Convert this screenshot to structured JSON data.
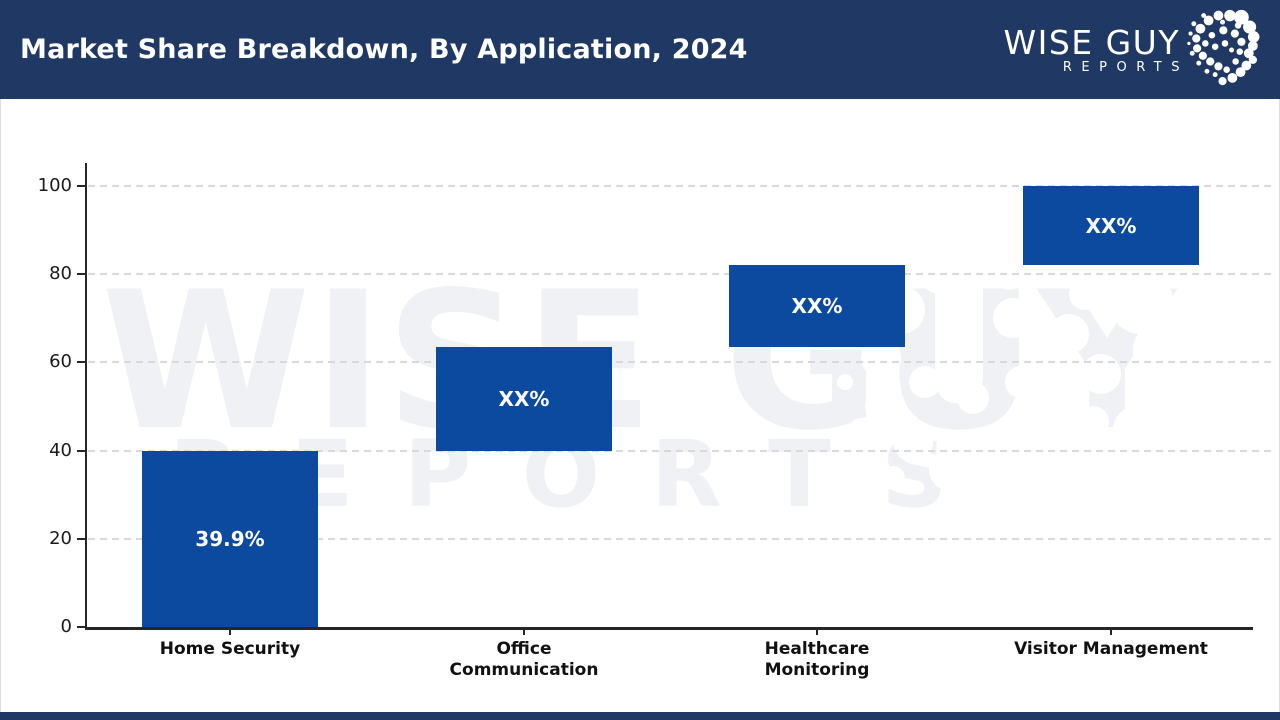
{
  "header": {
    "title": "Market Share Breakdown, By Application, 2024",
    "logo": {
      "line1": "WISE GUY",
      "line2": "REPORTS"
    }
  },
  "watermark": {
    "line1": "WISE GUY",
    "line2": "REPORTS"
  },
  "chart_data": {
    "type": "bar",
    "subtype": "waterfall",
    "title": "Market Share Breakdown, By Application, 2024",
    "categories": [
      "Home Security",
      "Office Communication",
      "Healthcare Monitoring",
      "Visitor Management"
    ],
    "category_label_lines": [
      [
        "Home Security"
      ],
      [
        "Office",
        "Communication"
      ],
      [
        "Healthcare",
        "Monitoring"
      ],
      [
        "Visitor Management"
      ]
    ],
    "segments": [
      {
        "category": "Home Security",
        "start": 0,
        "end": 39.9,
        "label": "39.9%"
      },
      {
        "category": "Office Communication",
        "start": 40,
        "end": 63.5,
        "label": "XX%"
      },
      {
        "category": "Healthcare Monitoring",
        "start": 63.5,
        "end": 82,
        "label": "XX%"
      },
      {
        "category": "Visitor Management",
        "start": 82,
        "end": 100,
        "label": "XX%"
      }
    ],
    "yticks": [
      0,
      20,
      40,
      60,
      80,
      100
    ],
    "ylim": [
      0,
      105
    ],
    "xlabel": "",
    "ylabel": "",
    "grid": "horizontal-dashed",
    "legend": "none",
    "colors": {
      "bar": "#0b4a9e",
      "bar_label": "#ffffff",
      "axis": "#262626",
      "tick_label": "#1a1a1a",
      "gridline": "#d9d9d9",
      "header_navy": "#1f3864",
      "watermark": "#f0f1f4"
    }
  }
}
